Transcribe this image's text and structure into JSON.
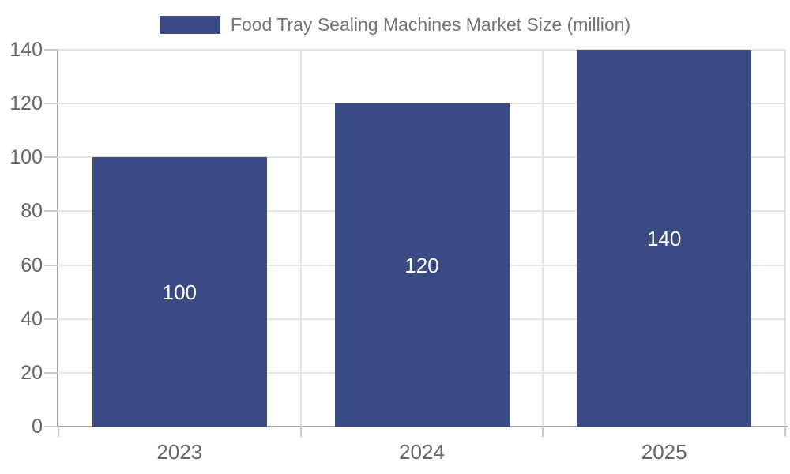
{
  "chart_data": {
    "type": "bar",
    "title": "Food Tray Sealing Machines Market Size (million)",
    "legend_entries": [
      "Food Tray Sealing Machines Market Size (million)"
    ],
    "legend_position": "top-center",
    "categories": [
      "2023",
      "2024",
      "2025"
    ],
    "values": [
      100,
      120,
      140
    ],
    "xlabel": "",
    "ylabel": "",
    "ylim": [
      0,
      140
    ],
    "ytick_step": 20,
    "yticks": [
      0,
      20,
      40,
      60,
      80,
      100,
      120,
      140
    ],
    "grid": true,
    "value_labels_shown": true,
    "colors": {
      "bar": "#3A4A82",
      "axis_line": "#A3A3A3",
      "gridline": "#E4E4E4",
      "tick": "#C9C9C9",
      "axis_text": "#666666",
      "legend_text": "#747474",
      "value_label_text": "#FFFFFF",
      "background": "#FFFFFF"
    }
  }
}
